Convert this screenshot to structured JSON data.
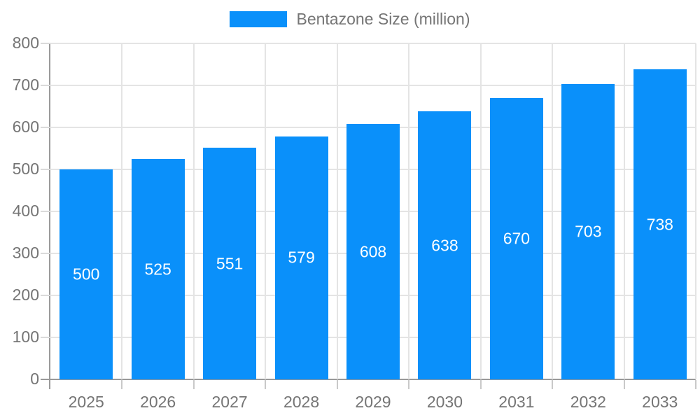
{
  "legend": {
    "items": [
      {
        "label": "Bentazone Size (million)",
        "color": "#0a90fa"
      }
    ]
  },
  "chart_data": {
    "type": "bar",
    "title": "",
    "categories": [
      "2025",
      "2026",
      "2027",
      "2028",
      "2029",
      "2030",
      "2031",
      "2032",
      "2033"
    ],
    "series": [
      {
        "name": "Bentazone Size (million)",
        "values": [
          500,
          525,
          551,
          579,
          608,
          638,
          670,
          703,
          738
        ],
        "color": "#0a90fa"
      }
    ],
    "value_labels": {
      "position": "inside-center",
      "color": "#ffffff"
    },
    "xlabel": "",
    "ylabel": "",
    "ylim": [
      0,
      800
    ],
    "ytick_step": 100,
    "yticks": [
      0,
      100,
      200,
      300,
      400,
      500,
      600,
      700,
      800
    ],
    "grid": true,
    "legend_position": "top"
  },
  "colors": {
    "bar": "#0a90fa",
    "grid": "#e4e4e4",
    "axis": "#9a9a9a",
    "tick": "#c9c9c9",
    "text": "#757575",
    "value_label": "#ffffff",
    "background": "#ffffff"
  }
}
